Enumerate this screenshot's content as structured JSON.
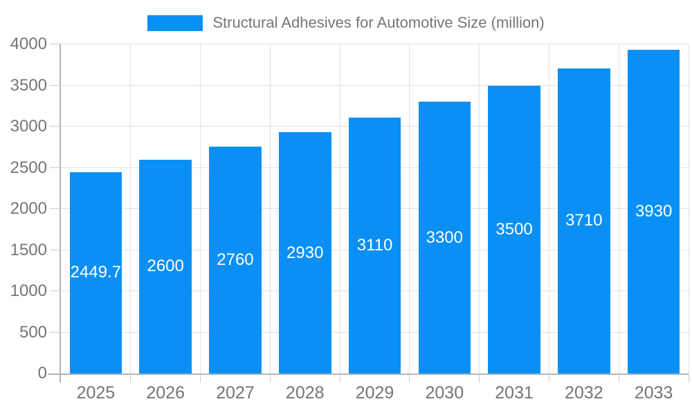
{
  "colors": {
    "background": "#ffffff",
    "bar": "#0a90f5",
    "grid": "#e2e2e2",
    "axis": "#b3b3b3",
    "tick": "#cccccc",
    "text": "#757575",
    "value_text": "#ffffff"
  },
  "legend": {
    "swatch_color": "#0a90f5",
    "label": "Structural Adhesives for Automotive Size (million)"
  },
  "chart_data": {
    "type": "bar",
    "title": "Structural Adhesives for Automotive Size (million)",
    "categories": [
      "2025",
      "2026",
      "2027",
      "2028",
      "2029",
      "2030",
      "2031",
      "2032",
      "2033"
    ],
    "values": [
      2449.7,
      2600,
      2760,
      2930,
      3110,
      3300,
      3500,
      3710,
      3930
    ],
    "labels": [
      "2449.7",
      "2600",
      "2760",
      "2930",
      "3110",
      "3300",
      "3500",
      "3710",
      "3930"
    ],
    "xlabel": "",
    "ylabel": "",
    "ylim": [
      0,
      4000
    ],
    "ytick_interval": 500,
    "yticks": [
      "0",
      "500",
      "1000",
      "1500",
      "2000",
      "2500",
      "3000",
      "3500",
      "4000"
    ],
    "grid": true,
    "legend_position": "top",
    "value_label_position": "center-of-bar"
  }
}
